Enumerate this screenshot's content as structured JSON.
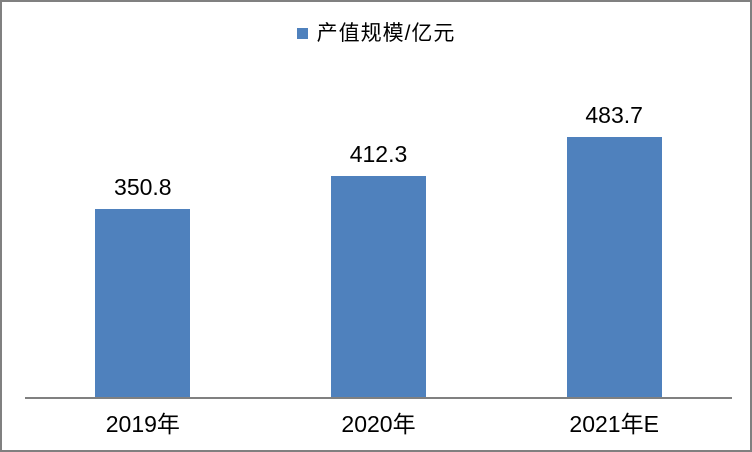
{
  "chart_data": {
    "type": "bar",
    "title": "",
    "xlabel": "",
    "ylabel": "",
    "legend_entries": [
      "产值规模/亿元"
    ],
    "legend_position": "top",
    "categories": [
      "2019年",
      "2020年",
      "2021年E"
    ],
    "values": [
      350.8,
      412.3,
      483.7
    ],
    "value_labels": [
      "350.8",
      "412.3",
      "483.7"
    ],
    "ylim": [
      0,
      600
    ],
    "grid": false,
    "colors": {
      "bar": "#4F81BD",
      "axis_line": "#808080",
      "frame_border": "#808080",
      "text": "#000000",
      "background": "#ffffff"
    }
  }
}
